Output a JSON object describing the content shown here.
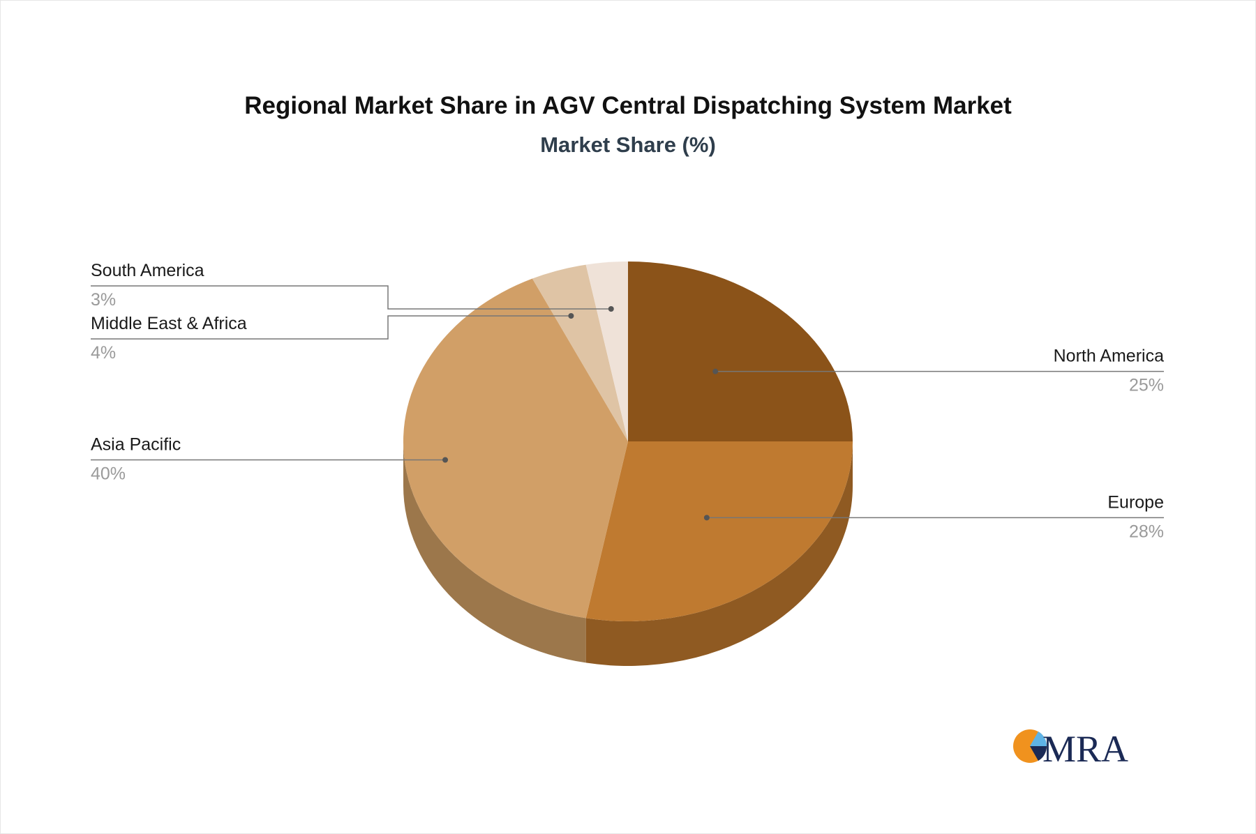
{
  "chart_data": {
    "type": "pie",
    "title": "Regional Market Share in AGV Central Dispatching System Market",
    "subtitle": "Market Share (%)",
    "slices": [
      {
        "label": "North America",
        "value": 25,
        "value_label": "25%",
        "color": "#8b5319",
        "side_color": "#6f4214"
      },
      {
        "label": "Europe",
        "value": 28,
        "value_label": "28%",
        "color": "#bf7a30",
        "side_color": "#8f5a22"
      },
      {
        "label": "Asia Pacific",
        "value": 40,
        "value_label": "40%",
        "color": "#d19f67",
        "side_color": "#9c774b"
      },
      {
        "label": "Middle East & Africa",
        "value": 4,
        "value_label": "4%",
        "color": "#dfc4a5",
        "side_color": "#b09a80"
      },
      {
        "label": "South America",
        "value": 3,
        "value_label": "3%",
        "color": "#efe2d8",
        "side_color": "#c8b9ad"
      }
    ],
    "legend": "none"
  },
  "logo": {
    "text": "MRA",
    "colors": {
      "orange": "#f0921e",
      "blue": "#5fb3e5",
      "navy": "#1b2a55"
    }
  }
}
